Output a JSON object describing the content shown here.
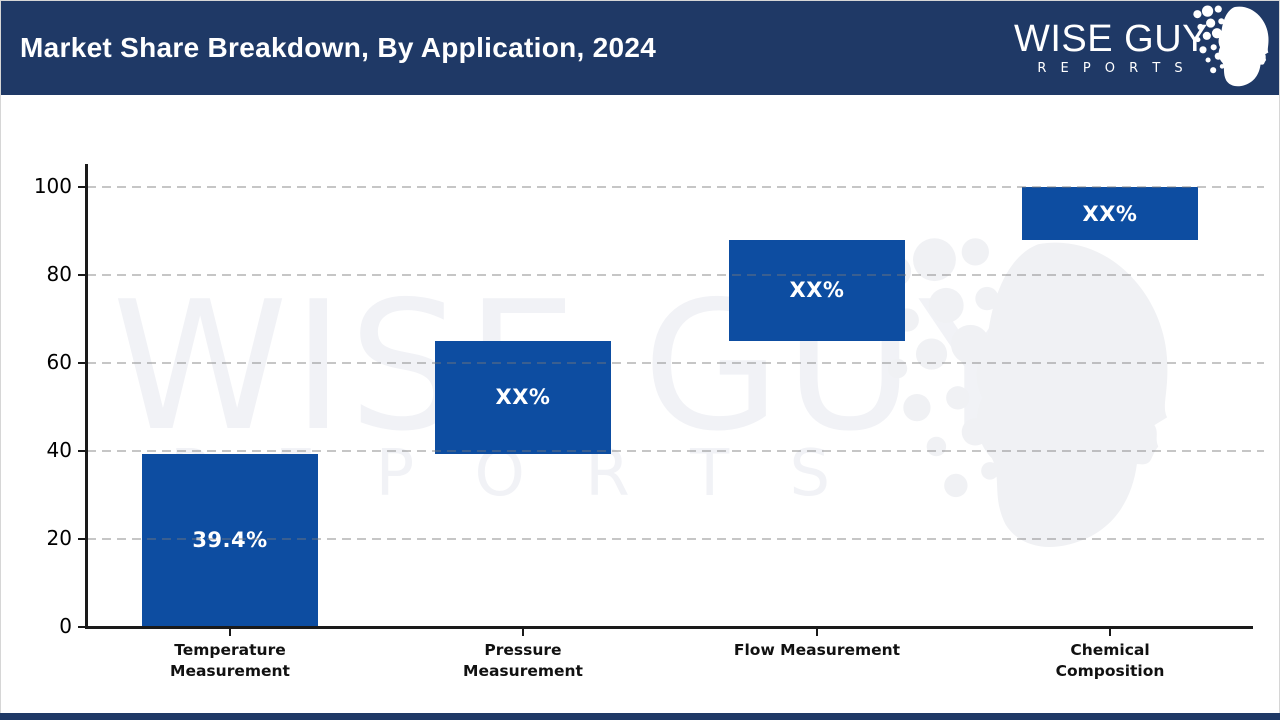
{
  "header": {
    "title": "Market Share Breakdown, By Application, 2024",
    "logo": {
      "name": "WISE GUY",
      "sub": "R E P O R T S"
    }
  },
  "watermark": {
    "big": "WISE GUY",
    "sub": "R E P O R T S"
  },
  "chart_data": {
    "type": "bar",
    "subtype": "waterfall",
    "title": "Market Share Breakdown, By Application, 2024",
    "categories": [
      "Temperature Measurement",
      "Pressure Measurement",
      "Flow Measurement",
      "Chemical Composition"
    ],
    "categories_display": [
      "Temperature\nMeasurement",
      "Pressure\nMeasurement",
      "Flow Measurement",
      "Chemical\nComposition"
    ],
    "bar_labels": [
      "39.4%",
      "XX%",
      "XX%",
      "XX%"
    ],
    "segments": [
      [
        0,
        39.4
      ],
      [
        39.4,
        65.1
      ],
      [
        65.1,
        87.9
      ],
      [
        87.9,
        100
      ]
    ],
    "estimated_values": [
      39.4,
      25.7,
      22.8,
      12.1
    ],
    "note": "Waterfall-style stepped bars; only first segment value (39.4%) shown, other values masked as XX% in source. Segment ranges estimated from axis gridlines.",
    "xlabel": "",
    "ylabel": "",
    "ylim": [
      0,
      100
    ],
    "yticks": [
      0,
      20,
      40,
      60,
      80,
      100
    ],
    "ytick_labels": [
      "0",
      "20",
      "40",
      "60",
      "80",
      "100"
    ],
    "grid": "horizontal dashed, drawn over bars",
    "legend": "none",
    "bar_color": "#0D4DA1"
  },
  "colors": {
    "header_bg": "#1F3966",
    "footer_bg": "#1F3966",
    "bar": "#0D4DA1",
    "watermark": "#F1F2F6",
    "gridline": "#B9B9B9",
    "axis": "#1A1A1A",
    "border": "#D6D6D6"
  }
}
